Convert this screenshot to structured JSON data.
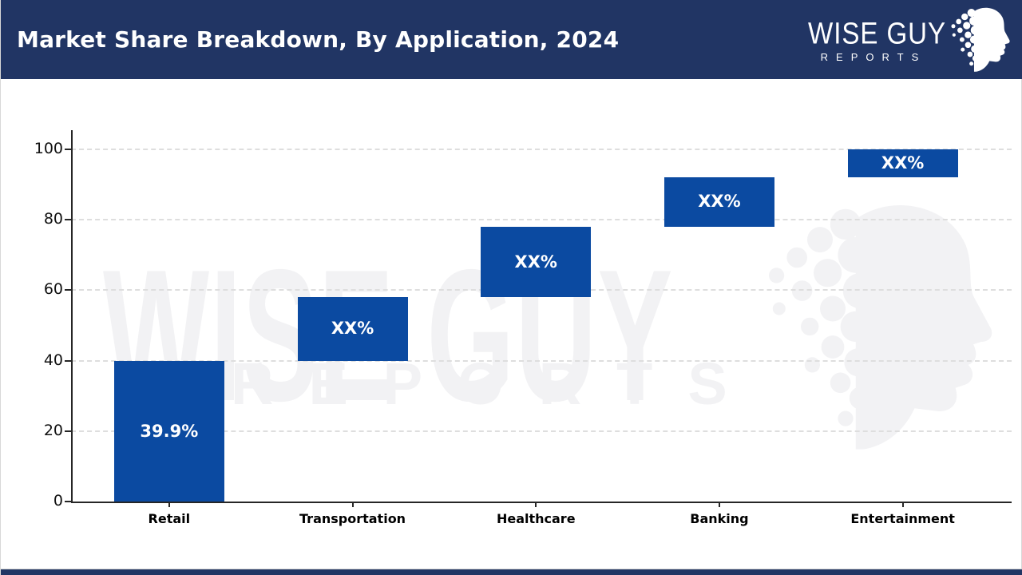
{
  "header": {
    "title": "Market Share Breakdown, By Application, 2024",
    "logo": {
      "primary": "WISE GUY",
      "secondary": "REPORTS"
    }
  },
  "watermark": {
    "primary": "WISE GUY",
    "secondary": "REPORTS"
  },
  "chart_data": {
    "type": "bar",
    "subtype": "waterfall",
    "title": "Market Share Breakdown, By Application, 2024",
    "categories": [
      "Retail",
      "Transportation",
      "Healthcare",
      "Banking",
      "Entertainment"
    ],
    "segments": [
      {
        "category": "Retail",
        "start": 0,
        "end": 39.9,
        "label": "39.9%"
      },
      {
        "category": "Transportation",
        "start": 40,
        "end": 58,
        "label": "XX%"
      },
      {
        "category": "Healthcare",
        "start": 58,
        "end": 78,
        "label": "XX%"
      },
      {
        "category": "Banking",
        "start": 78,
        "end": 92,
        "label": "XX%"
      },
      {
        "category": "Entertainment",
        "start": 92,
        "end": 100,
        "label": "XX%"
      }
    ],
    "yticks": [
      0,
      20,
      40,
      60,
      80,
      100
    ],
    "ylim": [
      0,
      105
    ],
    "xlabel": "",
    "ylabel": "",
    "grid": "horizontal-dashed",
    "legend": "none",
    "bar_color": "#0b4aa1",
    "bar_label_color": "#ffffff"
  },
  "colors": {
    "header_bg": "#213564",
    "footer_bg": "#213564",
    "axis": "#262626",
    "grid": "#dedede",
    "watermark": "#f2f2f4"
  }
}
